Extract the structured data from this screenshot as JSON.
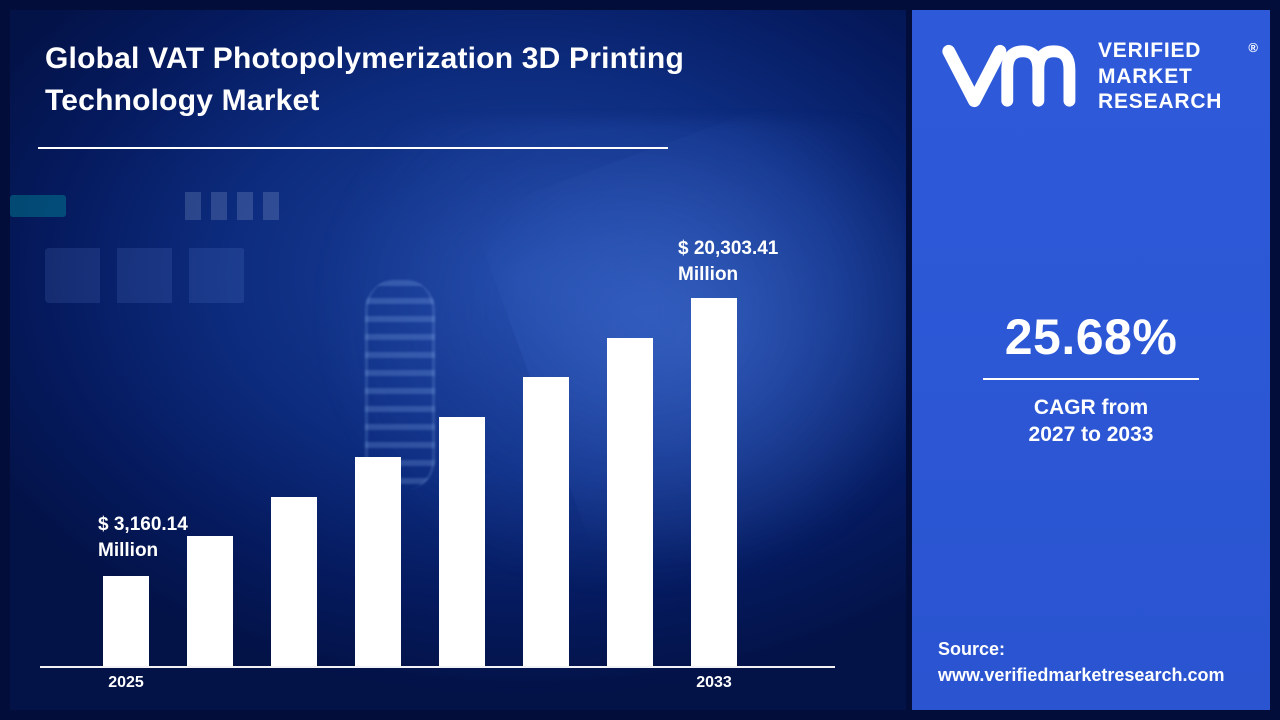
{
  "main": {
    "title": "Global VAT Photopolymerization 3D Printing Technology Market"
  },
  "sidebar": {
    "logo_monogram": "VM",
    "brand_lines": [
      "VERIFIED",
      "MARKET",
      "RESEARCH"
    ],
    "registered_mark": "®",
    "cagr_value": "25.68%",
    "cagr_label_line1": "CAGR from",
    "cagr_label_line2": "2027 to 2033",
    "source_label": "Source:",
    "source_url": "www.verifiedmarketresearch.com"
  },
  "colors": {
    "outer_frame_navy": "#020d3a",
    "main_panel_navy": "#0d2c7f",
    "side_panel_blue": "#2b57d4",
    "bar_white": "#ffffff",
    "text_white": "#ffffff"
  },
  "chart_data": {
    "type": "bar",
    "title": "Global VAT Photopolymerization 3D Printing Technology Market",
    "x_tick_labels": [
      "2025",
      "2033"
    ],
    "values": [
      3160.14,
      5609.5,
      8058.9,
      10508.3,
      12957.8,
      15407.2,
      17856.6,
      20303.41
    ],
    "ylabel": "USD Million",
    "ylim": [
      0,
      21000
    ],
    "labels": {
      "first_value": "$ 3,160.14",
      "first_unit": "Million",
      "last_value": "$ 20,303.41",
      "last_unit": "Million"
    },
    "cagr_percent": 25.68,
    "cagr_period": "2027 to 2033",
    "bar_color": "#ffffff",
    "legend": "none",
    "grid": "off"
  }
}
